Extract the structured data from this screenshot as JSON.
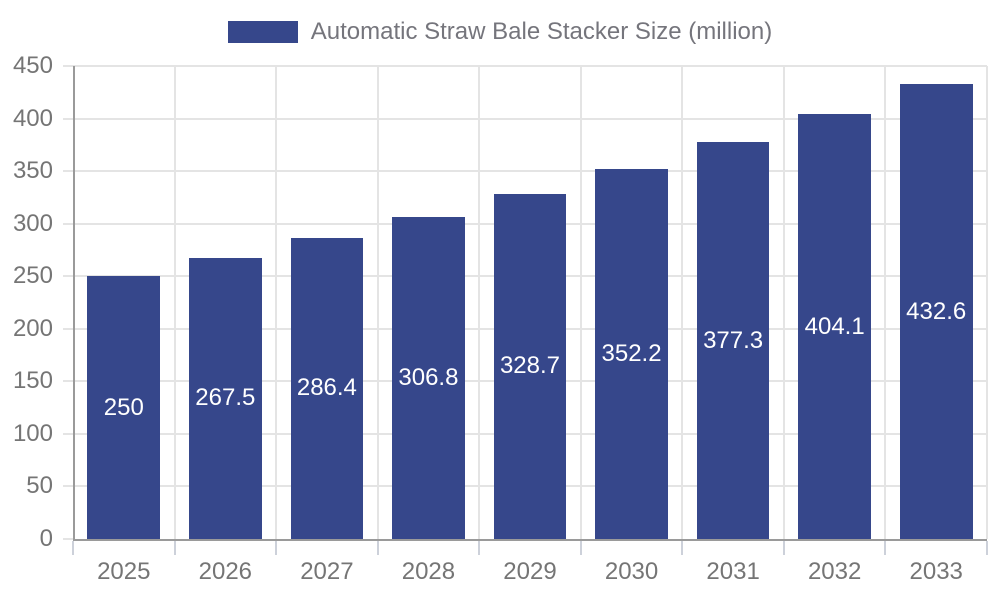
{
  "legend": {
    "label": "Automatic Straw Bale Stacker Size (million)"
  },
  "chart_data": {
    "type": "bar",
    "title": "Automatic Straw Bale Stacker Size (million)",
    "legend_entries": [
      "Automatic Straw Bale Stacker Size (million)"
    ],
    "legend_position": "top-center",
    "categories": [
      "2025",
      "2026",
      "2027",
      "2028",
      "2029",
      "2030",
      "2031",
      "2032",
      "2033"
    ],
    "values": [
      250,
      267.5,
      286.4,
      306.8,
      328.7,
      352.2,
      377.3,
      404.1,
      432.6
    ],
    "values_display": [
      "250",
      "267.5",
      "286.4",
      "306.8",
      "328.7",
      "352.2",
      "377.3",
      "404.1",
      "432.6"
    ],
    "xlabel": "",
    "ylabel": "",
    "ylim": [
      0,
      450
    ],
    "ytick_step": 50,
    "yticks": [
      0,
      50,
      100,
      150,
      200,
      250,
      300,
      350,
      400,
      450
    ],
    "grid": true,
    "colors": {
      "bar": "#36478B",
      "bar_label": "#FFFFFF",
      "grid_line": "#E4E4E4",
      "tick_line": "#CDD1DA",
      "axis_line": "#9A9A9A",
      "axis_text": "#757575",
      "legend_text": "#75757C",
      "background": "#FFFFFF"
    }
  }
}
